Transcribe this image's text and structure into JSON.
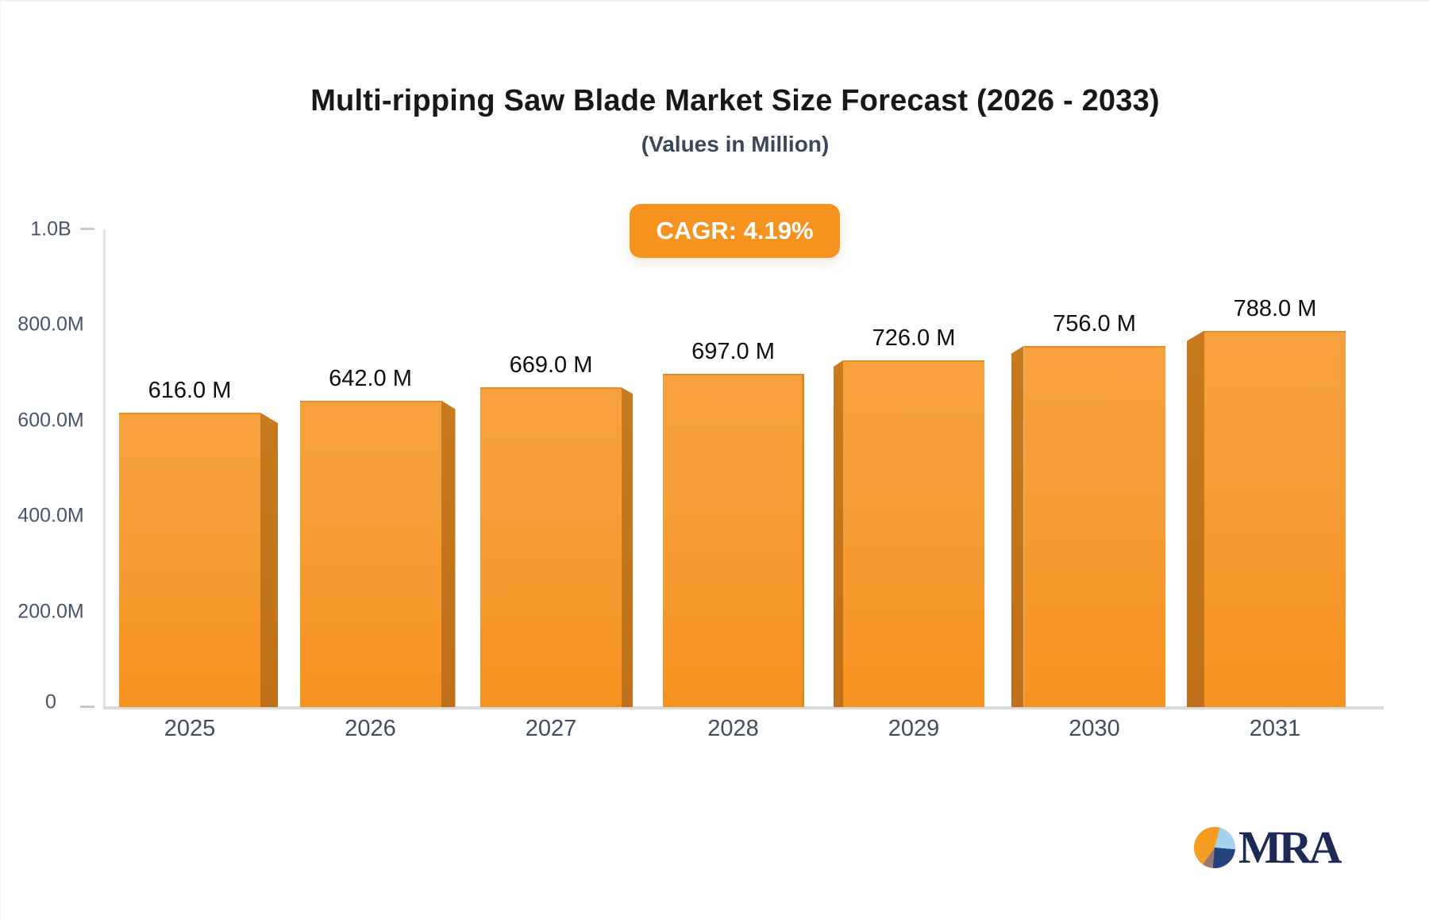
{
  "header": {
    "title": "Multi-ripping Saw Blade Market Size Forecast (2026 - 2033)",
    "subtitle": "(Values in Million)",
    "cagr_badge": "CAGR: 4.19%"
  },
  "logo": {
    "text": "MRA"
  },
  "colors": {
    "bar_face_top": "#f7a13e",
    "bar_face_bottom": "#f6921f",
    "bar_side": "#bf701a",
    "badge_orange": "#f6921e",
    "axis_line": "#e3e5e8",
    "baseline": "#d8dbde",
    "axis_text": "#475569",
    "year_text": "#3f4d5e",
    "value_text": "#0b0f14",
    "title_text": "#16181b",
    "subtitle_text": "#3a4859",
    "logo_navy": "#1c2a56",
    "logo_pie_orange": "#f59c22",
    "logo_pie_lightblue": "#a7d2ee",
    "logo_pie_darkblue": "#24427c",
    "logo_pie_brown": "#9a7a6e"
  },
  "chart_data": {
    "type": "bar",
    "title": "Multi-ripping Saw Blade Market Size Forecast (2026 - 2033)",
    "subtitle": "(Values in Million)",
    "cagr": "4.19%",
    "unit": "Million USD",
    "categories": [
      "2025",
      "2026",
      "2027",
      "2028",
      "2029",
      "2030",
      "2031"
    ],
    "values": [
      616,
      642,
      669,
      697,
      726,
      756,
      788
    ],
    "value_labels": [
      "616.0 M",
      "642.0 M",
      "669.0 M",
      "697.0 M",
      "726.0 M",
      "756.0 M",
      "788.0 M"
    ],
    "xlabel": "",
    "ylabel": "",
    "ylim": [
      0,
      1000
    ],
    "ytick_labels": [
      "1.0B",
      "800.0M",
      "600.0M",
      "400.0M",
      "200.0M",
      "0"
    ],
    "ytick_values": [
      1000,
      800,
      600,
      400,
      200,
      0
    ],
    "grid": "off",
    "legend": "none",
    "style": "3d-perspective-bars"
  }
}
